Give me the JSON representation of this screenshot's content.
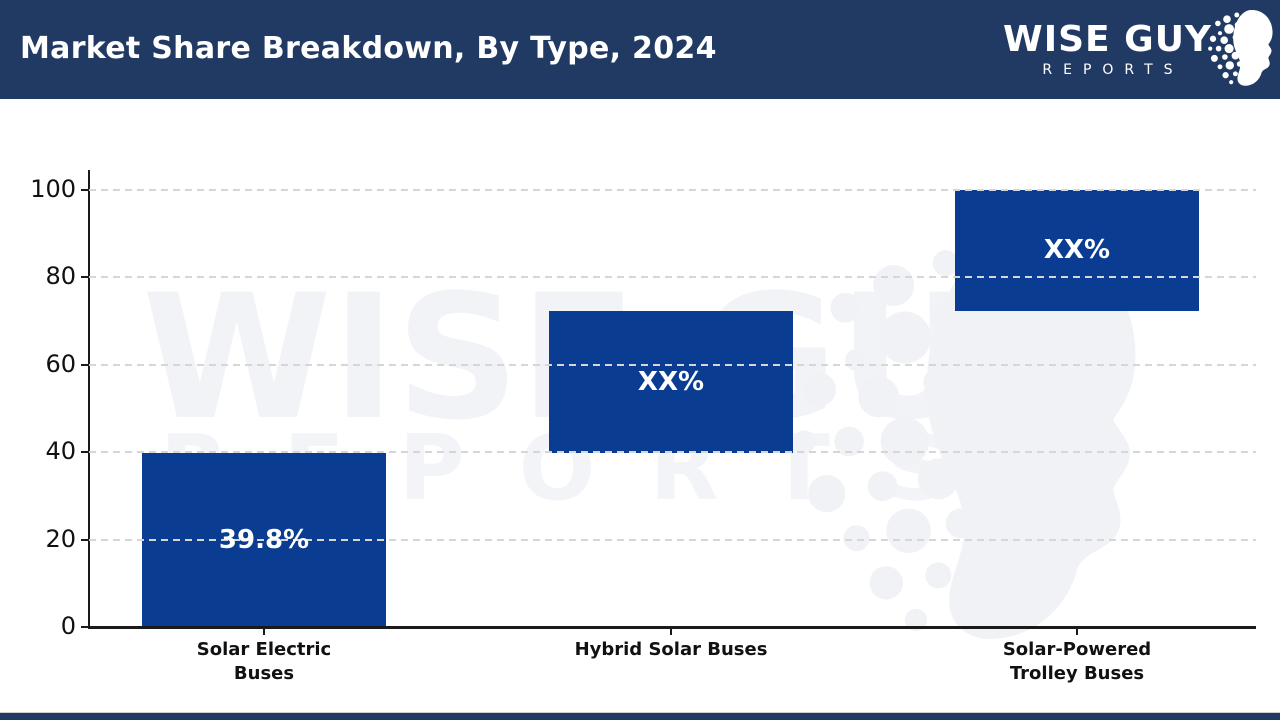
{
  "header": {
    "title": "Market Share Breakdown, By Type, 2024",
    "logo": {
      "name": "WISE GUY",
      "sub": "REPORTS"
    }
  },
  "watermark": {
    "line1": "WISE GUY",
    "line2": "REPORTS"
  },
  "colors": {
    "header_bg": "#213a63",
    "footer_bg": "#213a63",
    "bar": "#0a3d92",
    "grid": "#d6d6d6",
    "axis": "#1a1a1a",
    "bar_label": "#ffffff",
    "watermark": "#f2f3f6"
  },
  "chart_data": {
    "type": "bar",
    "subtype": "waterfall-stacked-segments",
    "title": "Market Share Breakdown, By Type, 2024",
    "categories": [
      "Solar Electric Buses",
      "Hybrid Solar Buses",
      "Solar-Powered Trolley Buses"
    ],
    "category_lines": [
      [
        "Solar Electric",
        "Buses"
      ],
      [
        "Hybrid Solar Buses"
      ],
      [
        "Solar-Powered",
        "Trolley Buses"
      ]
    ],
    "segments": [
      {
        "category": "Solar Electric Buses",
        "label": "39.8%",
        "start": 0,
        "end": 39.8
      },
      {
        "category": "Hybrid Solar Buses",
        "label": "XX%",
        "start": 39.8,
        "end": 72.3
      },
      {
        "category": "Solar-Powered Trolley Buses",
        "label": "XX%",
        "start": 72.3,
        "end": 100
      }
    ],
    "yticks": [
      0,
      20,
      40,
      60,
      80,
      100
    ],
    "ylim": [
      0,
      105
    ],
    "xlabel": "",
    "ylabel": "",
    "grid": "horizontal-dashed",
    "legend": null
  }
}
